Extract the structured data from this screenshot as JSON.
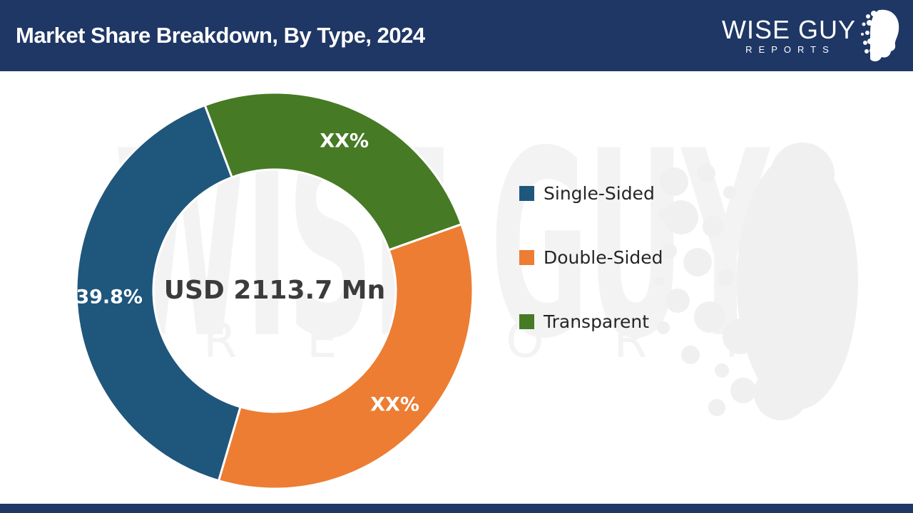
{
  "header": {
    "title": "Market Share Breakdown, By Type, 2024",
    "logo": {
      "primary": "WISE GUY",
      "secondary": "REPORTS"
    }
  },
  "watermark": {
    "primary": "WISE GUY",
    "secondary": "R E P O R T S"
  },
  "chart_data": {
    "type": "pie",
    "subtype": "donut",
    "title": "Market Share Breakdown, By Type, 2024",
    "center_label": "USD 2113.7 Mn",
    "start_angle_deg": -20.6,
    "legend_position": "right",
    "segments": [
      {
        "label": "Transparent",
        "display_value": "XX%",
        "value_pct": null,
        "value_pct_est": 25.2,
        "angle_deg": 91,
        "color": "#467A24"
      },
      {
        "label": "Double-Sided",
        "display_value": "XX%",
        "value_pct": null,
        "value_pct_est": 35.0,
        "angle_deg": 126,
        "color": "#EC7D33"
      },
      {
        "label": "Single-Sided",
        "display_value": "39.8%",
        "value_pct": 39.8,
        "value_pct_est": 39.8,
        "angle_deg": 143,
        "color": "#1F567C"
      }
    ],
    "legend": [
      {
        "label": "Single-Sided",
        "color": "#1F567C"
      },
      {
        "label": "Double-Sided",
        "color": "#EC7D33"
      },
      {
        "label": "Transparent",
        "color": "#467A24"
      }
    ]
  },
  "colors": {
    "header_bg": "#1F3765",
    "footer_bg": "#1F3765",
    "page_bg": "#FFFFFF",
    "center_text": "#3B3B3B",
    "legend_text": "#262626",
    "slice_label_text": "#FFFFFF",
    "watermark": "#F3F3F3"
  }
}
